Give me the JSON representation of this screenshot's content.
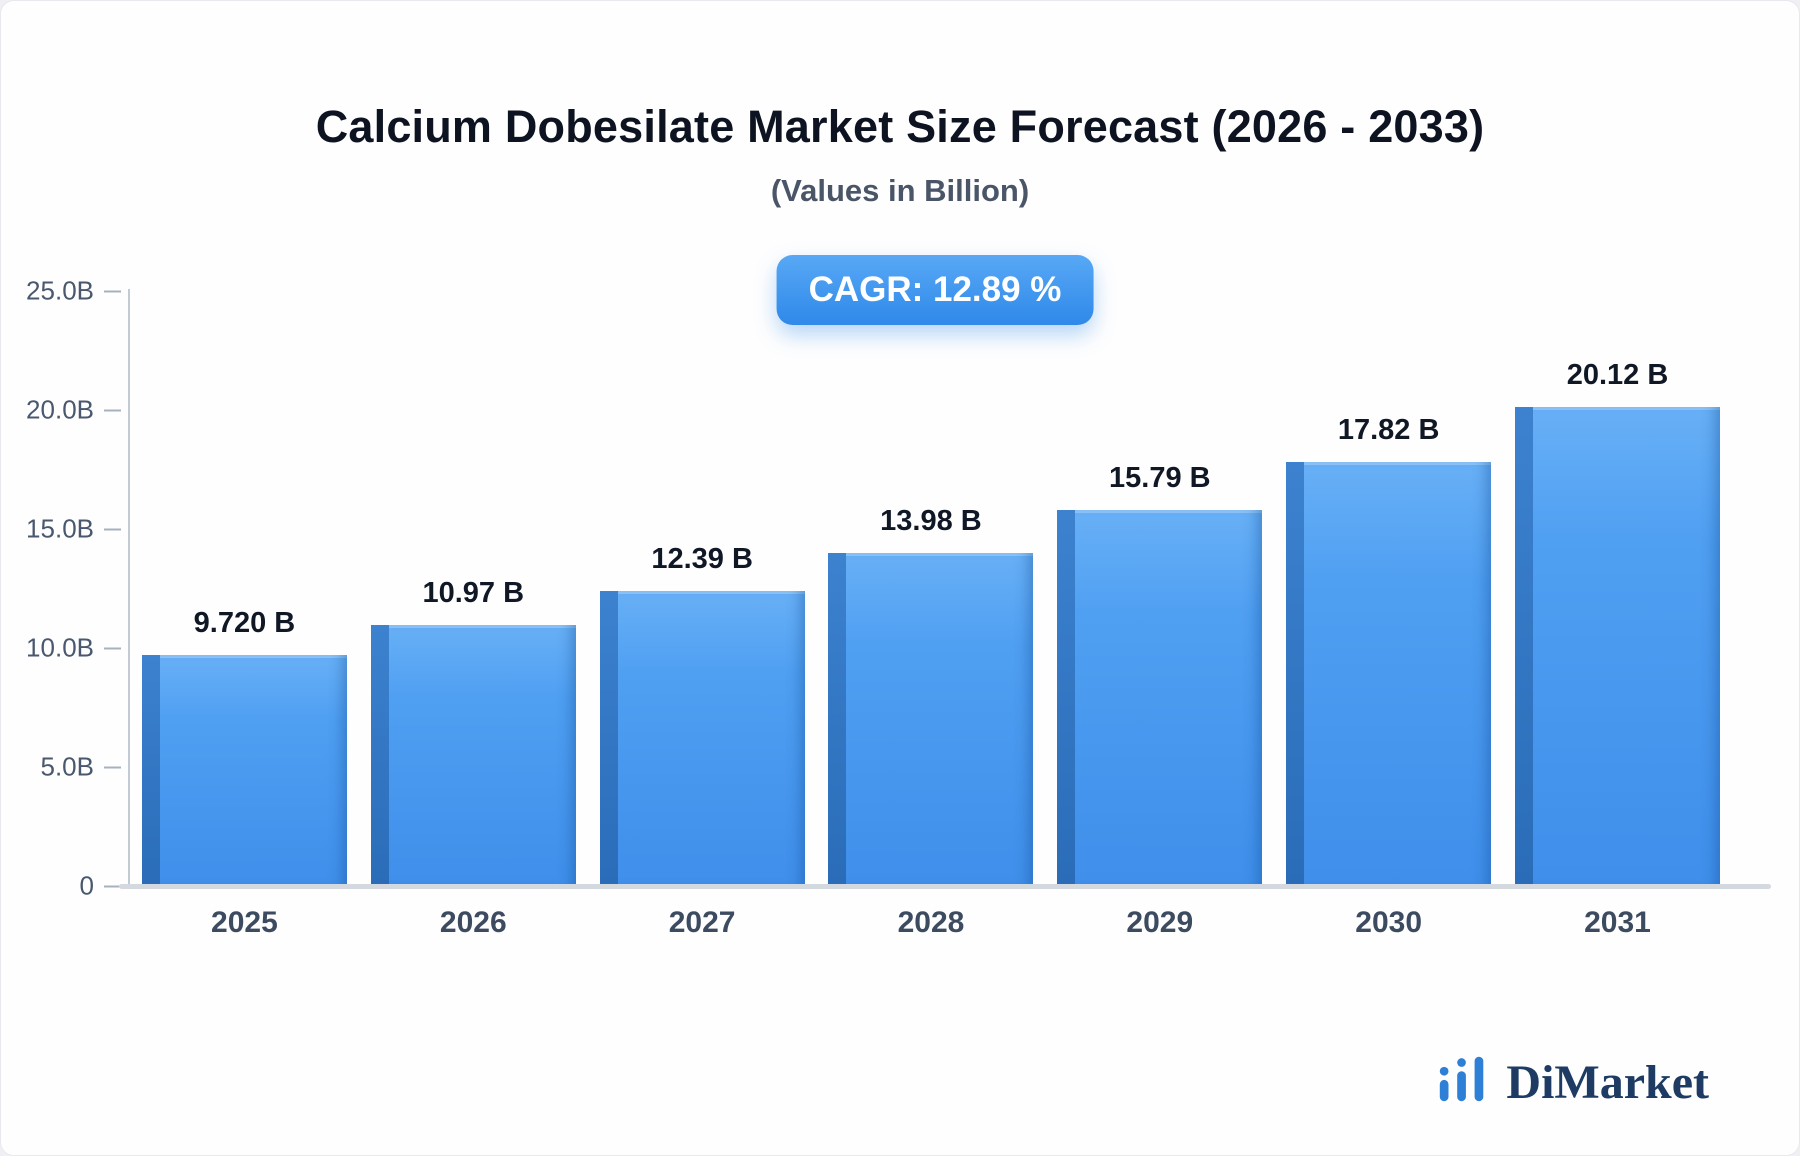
{
  "header": {
    "title": "Calcium Dobesilate Market Size Forecast (2026 - 2033)",
    "subtitle": "(Values in Billion)"
  },
  "badge": {
    "label": "CAGR: 12.89 %"
  },
  "chart_data": {
    "type": "bar",
    "categories": [
      "2025",
      "2026",
      "2027",
      "2028",
      "2029",
      "2030",
      "2031"
    ],
    "values": [
      9.72,
      10.97,
      12.39,
      13.98,
      15.79,
      17.82,
      20.12
    ],
    "value_labels": [
      "9.720 B",
      "10.97 B",
      "12.39 B",
      "13.98 B",
      "15.79 B",
      "17.82 B",
      "20.12 B"
    ],
    "title": "Calcium Dobesilate Market Size Forecast (2026 - 2033)",
    "subtitle": "(Values in Billion)",
    "xlabel": "",
    "ylabel": "",
    "ylim": [
      0,
      25
    ],
    "yticks": [
      {
        "label": "25.0B",
        "value": 25
      },
      {
        "label": "20.0B",
        "value": 20
      },
      {
        "label": "15.0B",
        "value": 15
      },
      {
        "label": "10.0B",
        "value": 10
      },
      {
        "label": "5.0B",
        "value": 5
      },
      {
        "label": "0",
        "value": 0
      }
    ],
    "grid": false,
    "legend": false,
    "bar_color_top": "#68b0f6",
    "bar_color_bottom": "#3f8feb",
    "bar_side_color": "#2a6cb8",
    "accent_color": "#2f89e9"
  },
  "branding": {
    "name": "DiMarket",
    "icon": "bar-chart-logo-icon",
    "icon_color": "#2e7fd6",
    "text_color": "#1d3b63"
  }
}
